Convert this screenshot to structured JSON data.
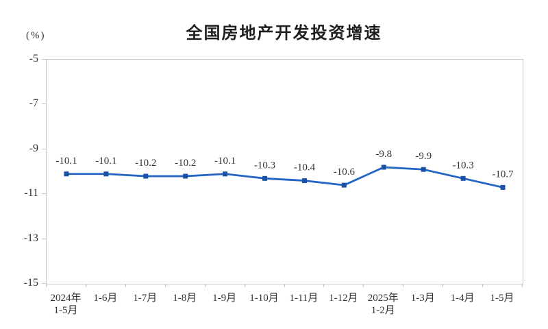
{
  "chart_data": {
    "type": "line",
    "title": "全国房地产开发投资增速",
    "unit_label": "(%)",
    "categories": [
      [
        "2024年",
        "1-5月"
      ],
      [
        "1-6月"
      ],
      [
        "1-7月"
      ],
      [
        "1-8月"
      ],
      [
        "1-9月"
      ],
      [
        "1-10月"
      ],
      [
        "1-11月"
      ],
      [
        "1-12月"
      ],
      [
        "2025年",
        "1-2月"
      ],
      [
        "1-3月"
      ],
      [
        "1-4月"
      ],
      [
        "1-5月"
      ]
    ],
    "values": [
      -10.1,
      -10.1,
      -10.2,
      -10.2,
      -10.1,
      -10.3,
      -10.4,
      -10.6,
      -9.8,
      -9.9,
      -10.3,
      -10.7
    ],
    "data_labels": [
      "-10.1",
      "-10.1",
      "-10.2",
      "-10.2",
      "-10.1",
      "-10.3",
      "-10.4",
      "-10.6",
      "-9.8",
      "-9.9",
      "-10.3",
      "-10.7"
    ],
    "y_ticks": [
      -5,
      -7,
      -9,
      -11,
      -13,
      -15
    ],
    "ylim": [
      -15,
      -5
    ],
    "xlabel": "",
    "ylabel": "(%)",
    "grid": false,
    "legend_position": "none",
    "colors": {
      "line": "#2364c4",
      "marker": "#1a52a8",
      "axis": "#c6c6c6",
      "text": "#333333",
      "title": "#1f1f1f"
    }
  }
}
